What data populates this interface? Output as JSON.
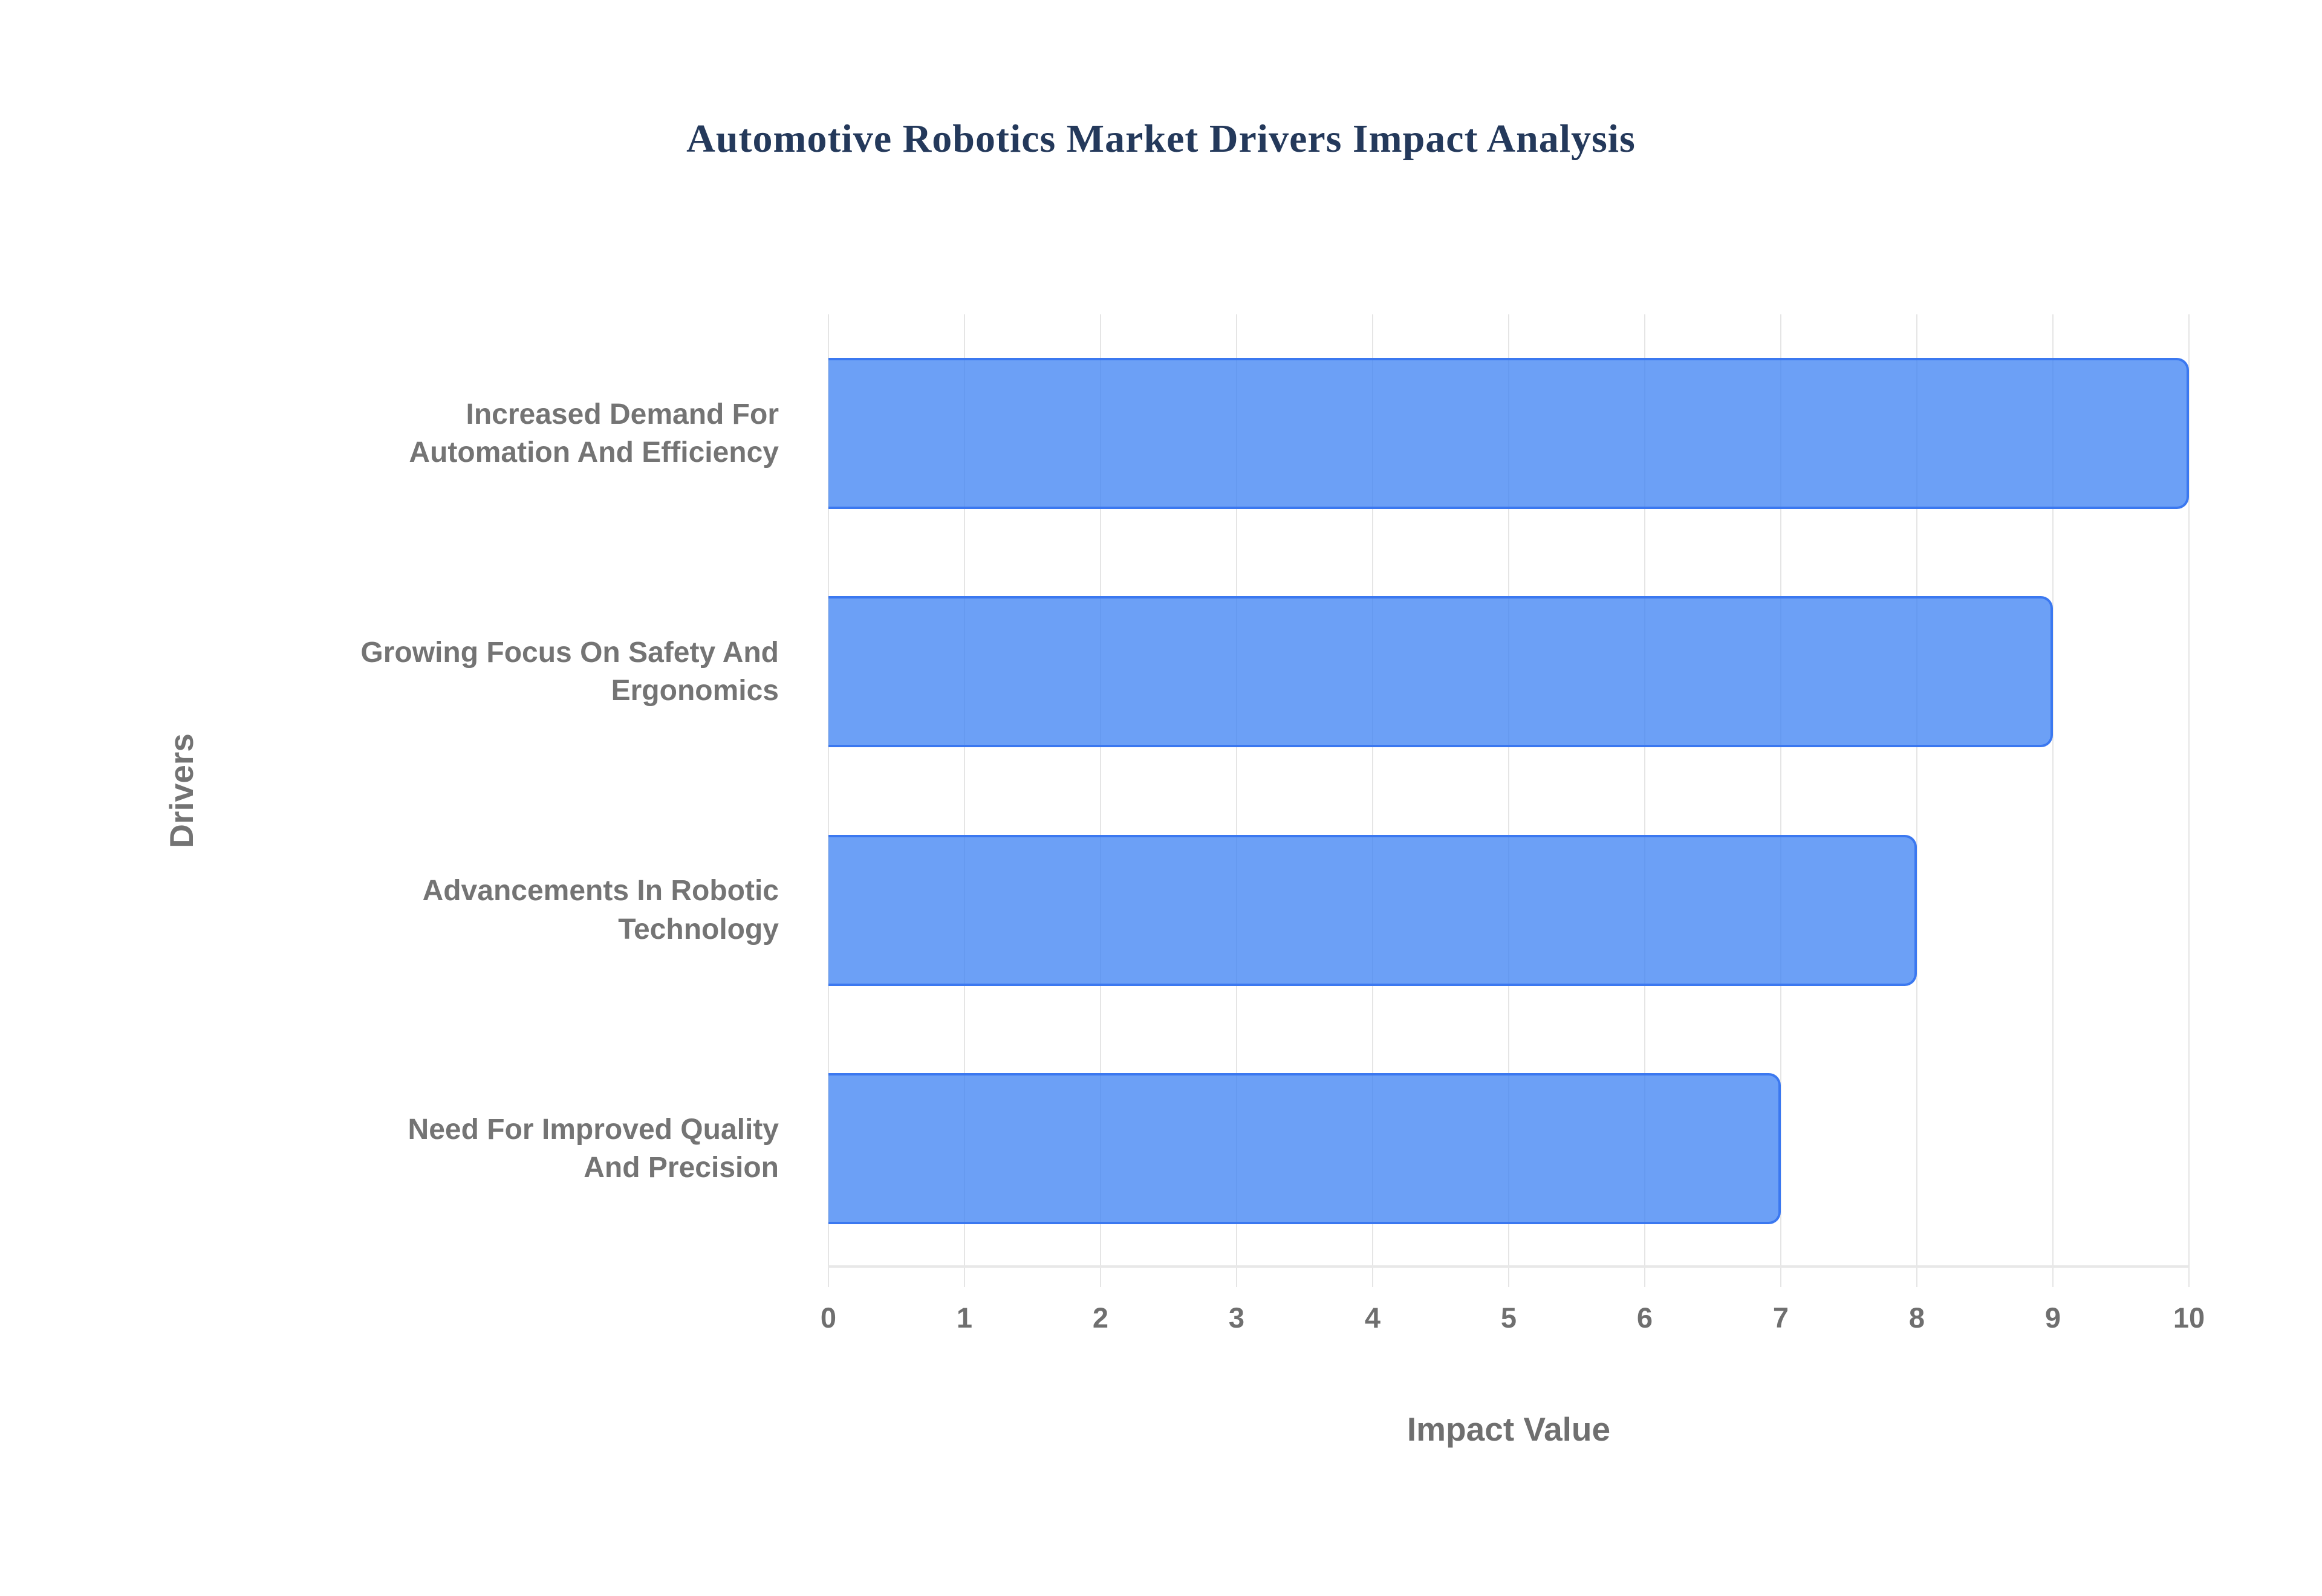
{
  "chart_data": {
    "type": "bar",
    "orientation": "horizontal",
    "title": "Automotive Robotics Market Drivers Impact Analysis",
    "categories": [
      "Increased Demand For Automation And Efficiency",
      "Growing Focus On Safety And Ergonomics",
      "Advancements In Robotic Technology",
      "Need For Improved Quality And Precision"
    ],
    "values": [
      10,
      9,
      8,
      7
    ],
    "xlabel": "Impact Value",
    "ylabel": "Drivers",
    "xlim": [
      0,
      10
    ],
    "xticks": [
      "0",
      "1",
      "2",
      "3",
      "4",
      "5",
      "6",
      "7",
      "8",
      "9",
      "10"
    ],
    "grid": true,
    "legend": false,
    "colors": {
      "bar_fill": "rgba(66,133,244,0.78)",
      "bar_border": "#3b78f0",
      "title_text": "#24395b",
      "axis_text": "#737373",
      "gridline": "#e5e5e5"
    }
  }
}
